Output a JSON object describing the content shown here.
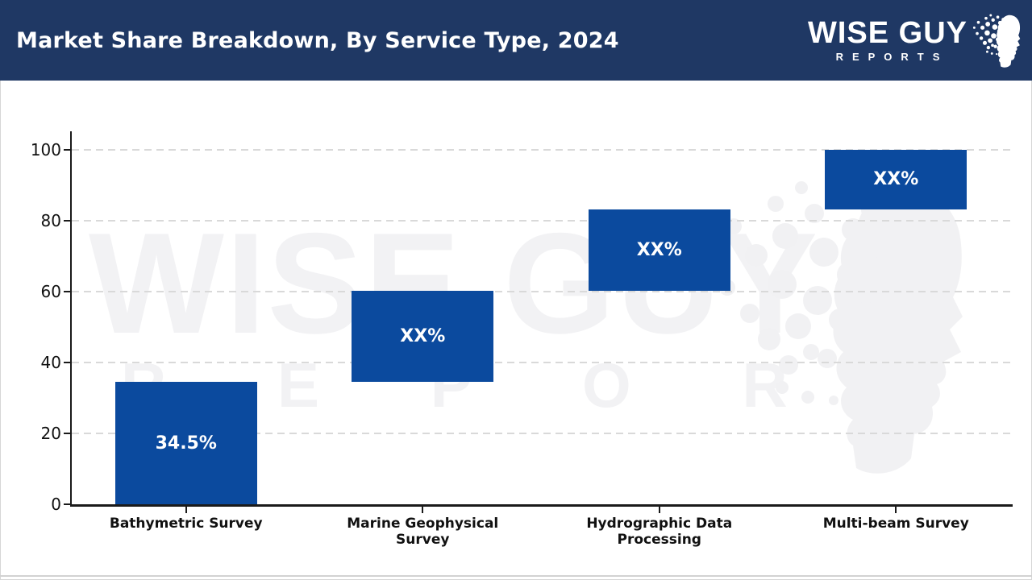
{
  "header": {
    "title": "Market Share Breakdown, By Service Type, 2024",
    "background_color": "#1f3864",
    "logo": {
      "line1": "WISE GUY",
      "line2": "REPORTS"
    }
  },
  "watermark": {
    "line1": "WISE GUY",
    "line2": "R E P O R T S"
  },
  "chart_data": {
    "type": "bar",
    "variant": "waterfall",
    "title": "Market Share Breakdown, By Service Type, 2024",
    "categories": [
      "Bathymetric Survey",
      "Marine Geophysical Survey",
      "Hydrographic Data Processing",
      "Multi-beam Survey"
    ],
    "bars": [
      {
        "category": "Bathymetric Survey",
        "label": "34.5%",
        "start": 0,
        "end": 34.5
      },
      {
        "category": "Marine Geophysical Survey",
        "label": "XX%",
        "start": 34.5,
        "end": 60.3
      },
      {
        "category": "Hydrographic Data Processing",
        "label": "XX%",
        "start": 60.3,
        "end": 83.2
      },
      {
        "category": "Multi-beam Survey",
        "label": "XX%",
        "start": 83.2,
        "end": 100
      }
    ],
    "xlabel": "",
    "ylabel": "",
    "ylim": [
      0,
      100
    ],
    "yticks": [
      0,
      20,
      40,
      60,
      80,
      100
    ],
    "bar_color": "#0b4a9e",
    "bar_label_color": "#ffffff",
    "grid": {
      "horizontal": true,
      "style": "dashed",
      "color": "#d9d9d9"
    },
    "legend": "none"
  }
}
